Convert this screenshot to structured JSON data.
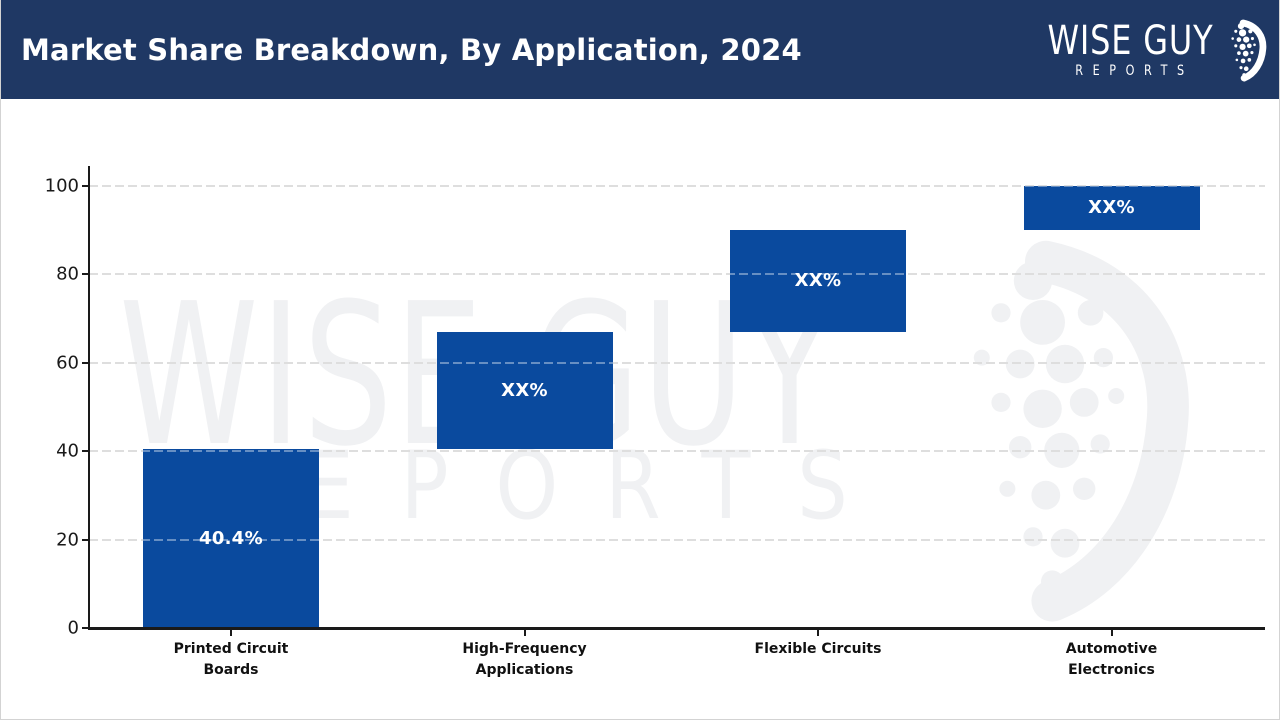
{
  "header": {
    "title": "Market Share Breakdown, By Application, 2024",
    "bg_color": "#1f3864",
    "logo": {
      "wordmark": "WISE GUY",
      "subtext": "REPORTS"
    }
  },
  "watermark": {
    "line1": "WISE GUY",
    "line2": "REPORTS",
    "color": "#f0f1f3"
  },
  "chart_data": {
    "type": "bar",
    "subtype": "stacked-waterfall-percentage",
    "title": "Market Share Breakdown, By Application, 2024",
    "ylim": [
      0,
      100
    ],
    "yticks": [
      0,
      20,
      40,
      60,
      80,
      100
    ],
    "grid": "horizontal-dashed",
    "legend": "none",
    "bar_color": "#0a4a9e",
    "bar_label_color": "#ffffff",
    "categories": [
      "Printed Circuit Boards",
      "High-Frequency Applications",
      "Flexible Circuits",
      "Automotive Electronics"
    ],
    "segments": [
      {
        "category": "Printed Circuit Boards",
        "category_lines": [
          "Printed Circuit",
          "Boards"
        ],
        "start": 0,
        "end": 40.4,
        "value_label": "40.4%"
      },
      {
        "category": "High-Frequency Applications",
        "category_lines": [
          "High-Frequency",
          "Applications"
        ],
        "start": 40.4,
        "end": 67,
        "value_label": "XX%"
      },
      {
        "category": "Flexible Circuits",
        "category_lines": [
          "Flexible Circuits"
        ],
        "start": 67,
        "end": 90,
        "value_label": "XX%"
      },
      {
        "category": "Automotive Electronics",
        "category_lines": [
          "Automotive",
          "Electronics"
        ],
        "start": 90,
        "end": 100,
        "value_label": "XX%"
      }
    ]
  }
}
